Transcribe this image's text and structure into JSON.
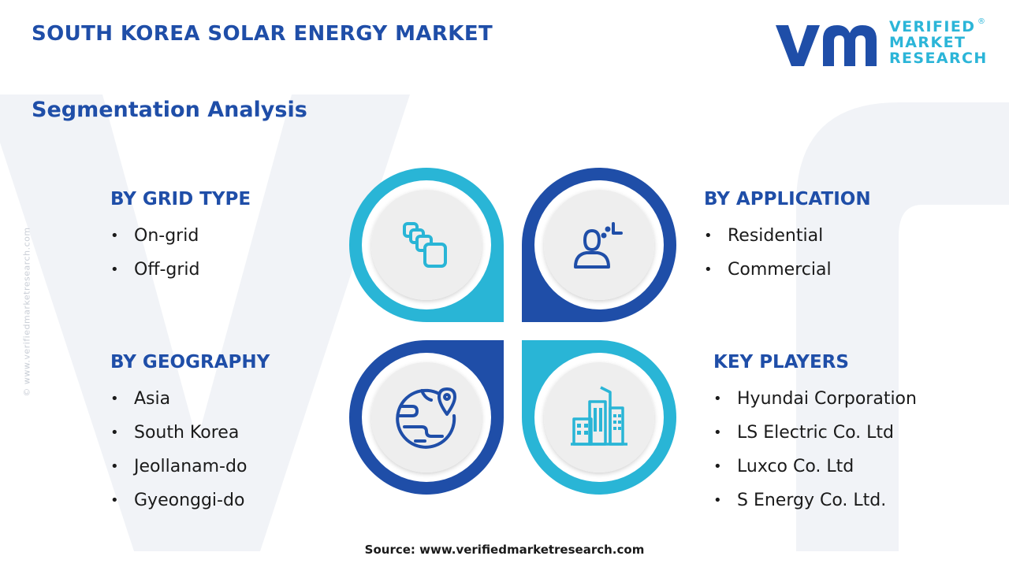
{
  "title": "SOUTH KOREA SOLAR ENERGY MARKET",
  "subtitle": "Segmentation Analysis",
  "logo": {
    "line1": "VERIFIED",
    "line2": "MARKET",
    "line3": "RESEARCH",
    "registered": "®"
  },
  "side_watermark": "© www.verifiedmarketresearch.com",
  "segments": {
    "grid_type": {
      "title": "BY GRID TYPE",
      "items": [
        "On-grid",
        "Off-grid"
      ]
    },
    "application": {
      "title": "BY APPLICATION",
      "items": [
        "Residential",
        "Commercial"
      ]
    },
    "geography": {
      "title": "BY GEOGRAPHY",
      "items": [
        "Asia",
        "South Korea",
        "Jeollanam-do",
        "Gyeonggi-do"
      ]
    },
    "key_players": {
      "title": "KEY PLAYERS",
      "items": [
        "Hyundai Corporation",
        "LS Electric Co. Ltd",
        "Luxco Co. Ltd",
        "S Energy Co. Ltd."
      ]
    }
  },
  "bullet": "•",
  "icons": {
    "top_left": "stacked-blocks-icon",
    "top_right": "person-target-icon",
    "bottom_left": "globe-location-icon",
    "bottom_right": "buildings-icon"
  },
  "colors": {
    "navy": "#1f4ea8",
    "cyan": "#29b5d6",
    "text": "#1a1a1a"
  },
  "source": "Source: www.verifiedmarketresearch.com"
}
